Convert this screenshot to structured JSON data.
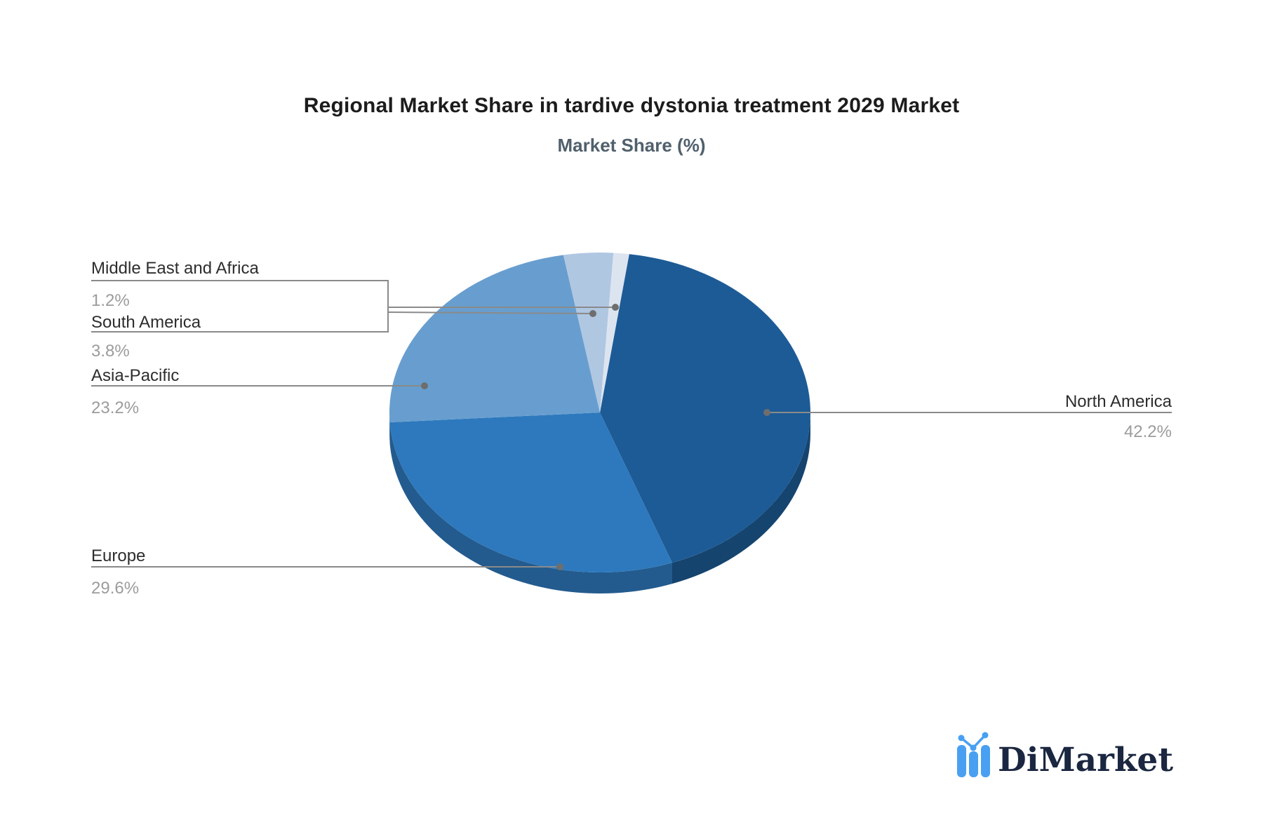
{
  "header": {
    "title": "Regional Market Share in tardive dystonia treatment 2029 Market",
    "subtitle": "Market Share (%)"
  },
  "chart_data": {
    "type": "pie",
    "title": "Regional Market Share in tardive dystonia treatment 2029 Market",
    "subtitle": "Market Share (%)",
    "unit": "percent",
    "legend": "none",
    "labels_shown_with_leader_lines": true,
    "effect": "3d-depth",
    "start_angle_deg": 8,
    "series": [
      {
        "label": "North America",
        "value": 42.2,
        "display": "42.2%",
        "color": "#1d5b96",
        "side_color": "#15446f"
      },
      {
        "label": "Europe",
        "value": 29.6,
        "display": "29.6%",
        "color": "#2e79bd",
        "side_color": "#235b8e"
      },
      {
        "label": "Asia-Pacific",
        "value": 23.2,
        "display": "23.2%",
        "color": "#689ecf",
        "side_color": "#4e77a0"
      },
      {
        "label": "South America",
        "value": 3.8,
        "display": "3.8%",
        "color": "#b0c7e2",
        "side_color": "#8495ab"
      },
      {
        "label": "Middle East and Africa",
        "value": 1.2,
        "display": "1.2%",
        "color": "#dce4f0",
        "side_color": "#a5abb8"
      }
    ],
    "label_style": {
      "name_color": "#2d2d2d",
      "value_color": "#9c9c9c",
      "line_color": "#8a8a8a"
    }
  },
  "logo": {
    "text": "DiMarket",
    "text_color": "#1b2740",
    "icon_color": "#49a0f2"
  }
}
